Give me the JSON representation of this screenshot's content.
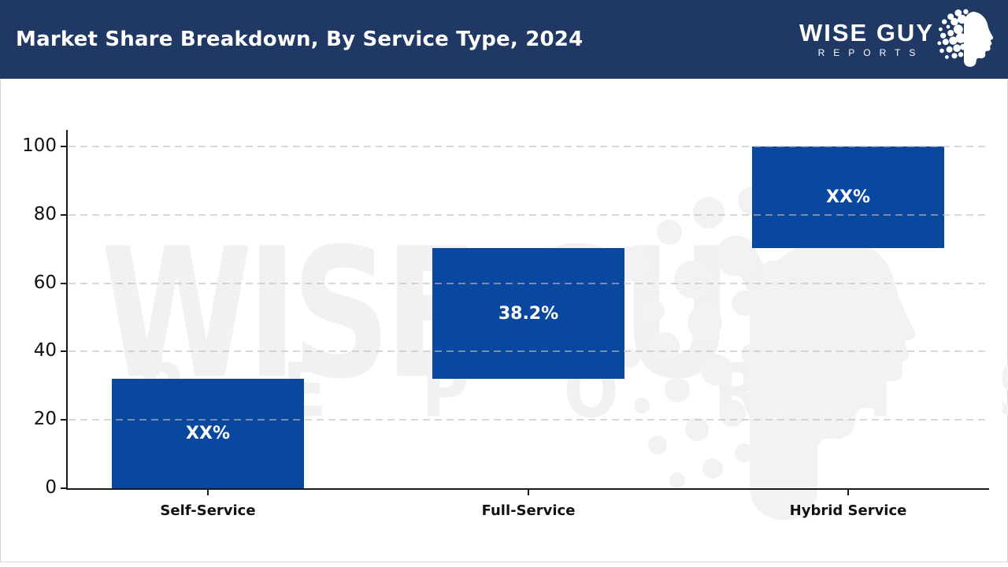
{
  "header": {
    "title": "Market Share Breakdown, By Service Type, 2024",
    "bg_color": "#1f3864",
    "logo": {
      "line1": "WISE GUY",
      "line2": "REPORTS"
    }
  },
  "watermark": {
    "line1": "WISE GUY",
    "line2": "R E P O R T S",
    "color": "#f1f1f2"
  },
  "chart_data": {
    "type": "bar",
    "variant": "floating-segment-bars",
    "title": "Market Share Breakdown, By Service Type, 2024",
    "categories": [
      "Self-Service",
      "Full-Service",
      "Hybrid Service"
    ],
    "series": [
      {
        "name": "Self-Service",
        "start": 0,
        "end": 32,
        "label": "XX%"
      },
      {
        "name": "Full-Service",
        "start": 32,
        "end": 70.2,
        "label": "38.2%"
      },
      {
        "name": "Hybrid Service",
        "start": 70.2,
        "end": 100,
        "label": "XX%"
      }
    ],
    "ylim": [
      0,
      105
    ],
    "yticks": [
      0,
      20,
      40,
      60,
      80,
      100
    ],
    "xlabel": "",
    "ylabel": "",
    "grid": true,
    "grid_style": "dashed",
    "legend": "none",
    "bar_color": "#0a479e",
    "bar_label_color": "#ffffff",
    "axis_color": "#1a1a1a",
    "gridline_color": "#d9d9d9"
  }
}
